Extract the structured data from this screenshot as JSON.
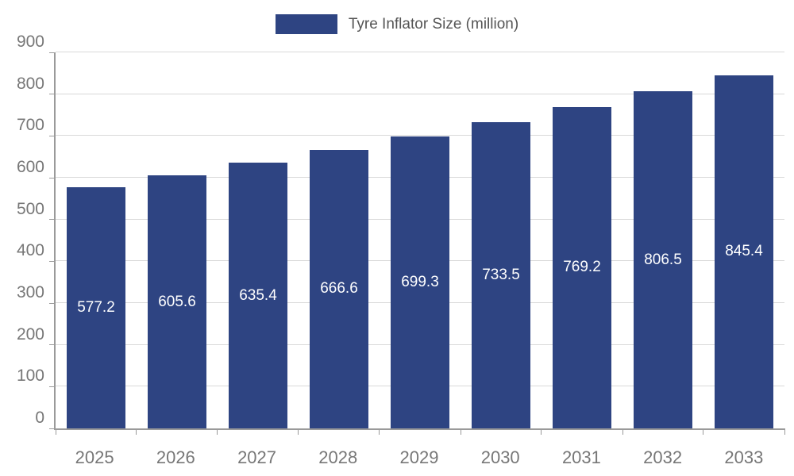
{
  "legend": {
    "label": "Tyre Inflator Size (million)"
  },
  "colors": {
    "bar": "#2e4482",
    "gridline": "#d9d9d9",
    "axis": "#9a9a9a",
    "tick_text": "#777777",
    "value_text": "#ffffff"
  },
  "chart_data": {
    "type": "bar",
    "title": "",
    "legend_label": "Tyre Inflator Size (million)",
    "categories": [
      "2025",
      "2026",
      "2027",
      "2028",
      "2029",
      "2030",
      "2031",
      "2032",
      "2033"
    ],
    "values": [
      577.2,
      605.6,
      635.4,
      666.6,
      699.3,
      733.5,
      769.2,
      806.5,
      845.4
    ],
    "value_labels": [
      "577.2",
      "605.6",
      "635.4",
      "666.6",
      "699.3",
      "733.5",
      "769.2",
      "806.5",
      "845.4"
    ],
    "xlabel": "",
    "ylabel": "",
    "ylim": [
      0,
      900
    ],
    "yticks": [
      0,
      100,
      200,
      300,
      400,
      500,
      600,
      700,
      800,
      900
    ],
    "grid": true,
    "legend_position": "top-center",
    "value_label_position": "inside-middle"
  }
}
